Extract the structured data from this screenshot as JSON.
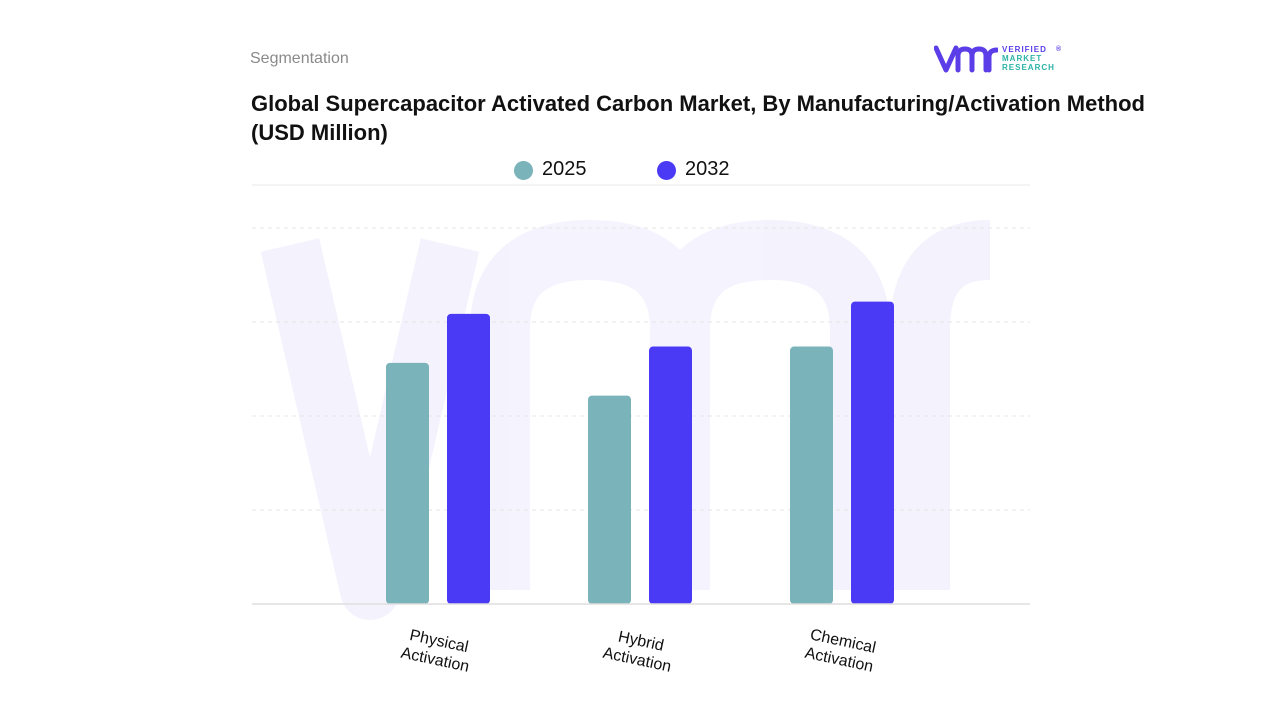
{
  "header": {
    "section": "Segmentation",
    "title": "Global Supercapacitor Activated Carbon Market, By Manufacturing/Activation Method (USD Million)"
  },
  "logo": {
    "mark": "VMR",
    "line1": "VERIFIED",
    "line2": "MARKET",
    "line3": "RESEARCH",
    "registered": "®"
  },
  "colors": {
    "series_2025": "#7ab3b9",
    "series_2032": "#4a3af5",
    "grid": "#e4e4e4",
    "logo": "#5b3ee8"
  },
  "chart_data": {
    "type": "bar",
    "title": "Global Supercapacitor Activated Carbon Market, By Manufacturing/Activation Method (USD Million)",
    "xlabel": "",
    "ylabel": "",
    "categories": [
      [
        "Physical",
        "Activation"
      ],
      [
        "Hybrid",
        "Activation"
      ],
      [
        "Chemical",
        "Activation"
      ]
    ],
    "series": [
      {
        "name": "2025",
        "values": [
          59,
          51,
          63
        ]
      },
      {
        "name": "2032",
        "values": [
          71,
          63,
          74
        ]
      }
    ],
    "ylim": [
      0,
      92
    ],
    "grid": true,
    "legend": "top-center"
  }
}
